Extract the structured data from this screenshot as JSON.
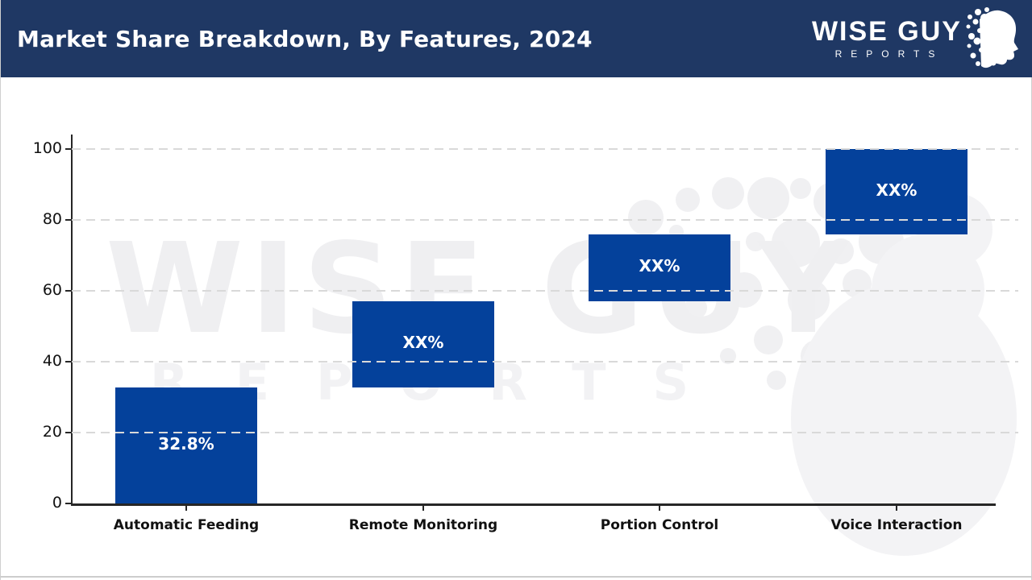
{
  "header": {
    "title": "Market Share Breakdown, By Features, 2024",
    "logo": {
      "brand_top": "WISE GUY",
      "brand_bottom": "REPORTS"
    },
    "bg_color": "#1f3864"
  },
  "watermark": {
    "line1": "WISE GUY",
    "line2": "REPORTS"
  },
  "chart_data": {
    "type": "bar",
    "subtype": "floating-waterfall",
    "title": "Market Share Breakdown, By Features, 2024",
    "xlabel": "",
    "ylabel": "",
    "categories": [
      "Automatic Feeding",
      "Remote Monitoring",
      "Portion Control",
      "Voice Interaction"
    ],
    "series": [
      {
        "name": "Market Share",
        "segments": [
          {
            "category": "Automatic Feeding",
            "start": 0,
            "end": 32.8,
            "label": "32.8%"
          },
          {
            "category": "Remote Monitoring",
            "start": 32.8,
            "end": 57,
            "label": "XX%"
          },
          {
            "category": "Portion Control",
            "start": 57,
            "end": 76,
            "label": "XX%"
          },
          {
            "category": "Voice Interaction",
            "start": 76,
            "end": 100,
            "label": "XX%"
          }
        ]
      }
    ],
    "ylim": [
      0,
      105
    ],
    "yticks": [
      0,
      20,
      40,
      60,
      80,
      100
    ],
    "grid": "dashed-horizontal-over-bars",
    "legend": "none",
    "bar_color": "#04419b",
    "bar_label_color": "#ffffff",
    "axis_color": "#262626",
    "gridline_color": "#d9d9d9"
  }
}
